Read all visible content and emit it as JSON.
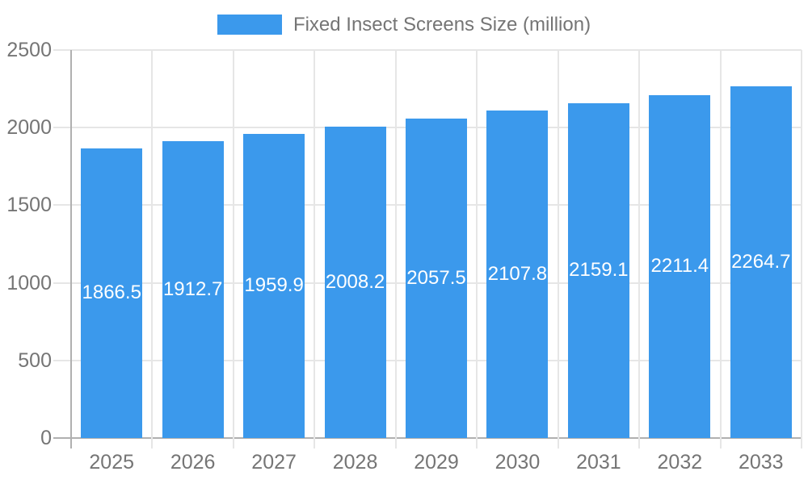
{
  "legend": {
    "label": "Fixed Insect Screens Size (million)"
  },
  "colors": {
    "bar": "#3B99EC",
    "axis_text": "#757575",
    "grid_line": "#E6E6E6",
    "axis_line": "#B0B0B0",
    "value_label": "#FFFFFF",
    "background": "#FFFFFF"
  },
  "chart_data": {
    "type": "bar",
    "title": "Fixed Insect Screens Size (million)",
    "categories": [
      "2025",
      "2026",
      "2027",
      "2028",
      "2029",
      "2030",
      "2031",
      "2032",
      "2033"
    ],
    "series": [
      {
        "name": "Fixed Insect Screens Size (million)",
        "values": [
          1866.5,
          1912.7,
          1959.9,
          2008.2,
          2057.5,
          2107.8,
          2159.1,
          2211.4,
          2264.7
        ]
      }
    ],
    "xlabel": "",
    "ylabel": "",
    "ylim": [
      0,
      2500
    ],
    "y_ticks": [
      0,
      500,
      1000,
      1500,
      2000,
      2500
    ],
    "grid": true,
    "legend_position": "top",
    "value_labels": "inside-center"
  }
}
